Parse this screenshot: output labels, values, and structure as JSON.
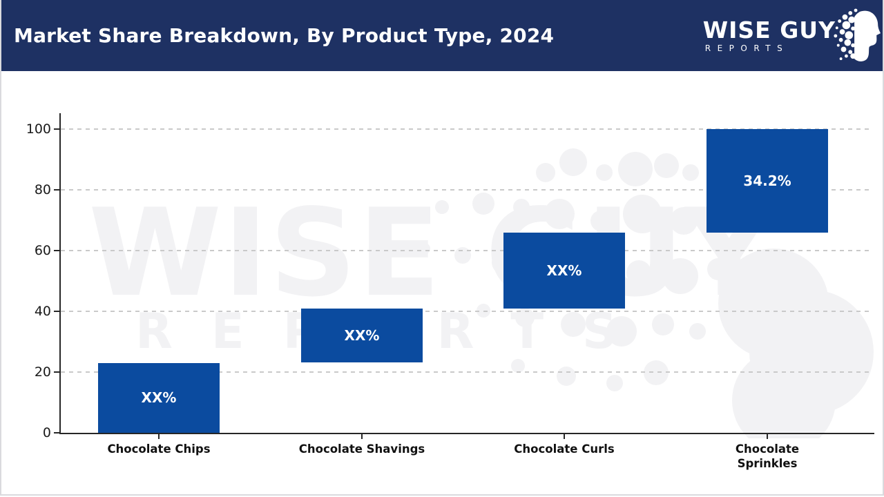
{
  "header": {
    "title": "Market Share Breakdown, By Product Type, 2024",
    "bg_color": "#1e3163",
    "logo": {
      "wordmark": "WISE GUY",
      "sub": "REPORTS"
    }
  },
  "watermark": {
    "wordmark": "WISE GUY",
    "sub": "REPORTS"
  },
  "chart_data": {
    "type": "bar",
    "variant": "floating-waterfall",
    "title": "Market Share Breakdown, By Product Type, 2024",
    "categories": [
      "Chocolate Chips",
      "Chocolate Shavings",
      "Chocolate Curls",
      "Chocolate\nSprinkles"
    ],
    "series": [
      {
        "name": "Market share (%)",
        "segments": [
          {
            "category": "Chocolate Chips",
            "start": 0,
            "end": 23,
            "label": "XX%"
          },
          {
            "category": "Chocolate Shavings",
            "start": 23.2,
            "end": 40.8,
            "label": "XX%"
          },
          {
            "category": "Chocolate Curls",
            "start": 40.8,
            "end": 65.8,
            "label": "XX%"
          },
          {
            "category": "Chocolate Sprinkles",
            "start": 65.8,
            "end": 100,
            "label": "34.2%"
          }
        ]
      }
    ],
    "ylim": [
      0,
      100
    ],
    "yticks": [
      0,
      20,
      40,
      60,
      80,
      100
    ],
    "xlabel": "",
    "ylabel": "",
    "grid": "horizontal-dashed",
    "legend": "none",
    "bar_color": "#0b4b9f",
    "bar_label_color": "#ffffff",
    "axis_color": "#262626",
    "gridline_color": "#c9c9c9"
  }
}
